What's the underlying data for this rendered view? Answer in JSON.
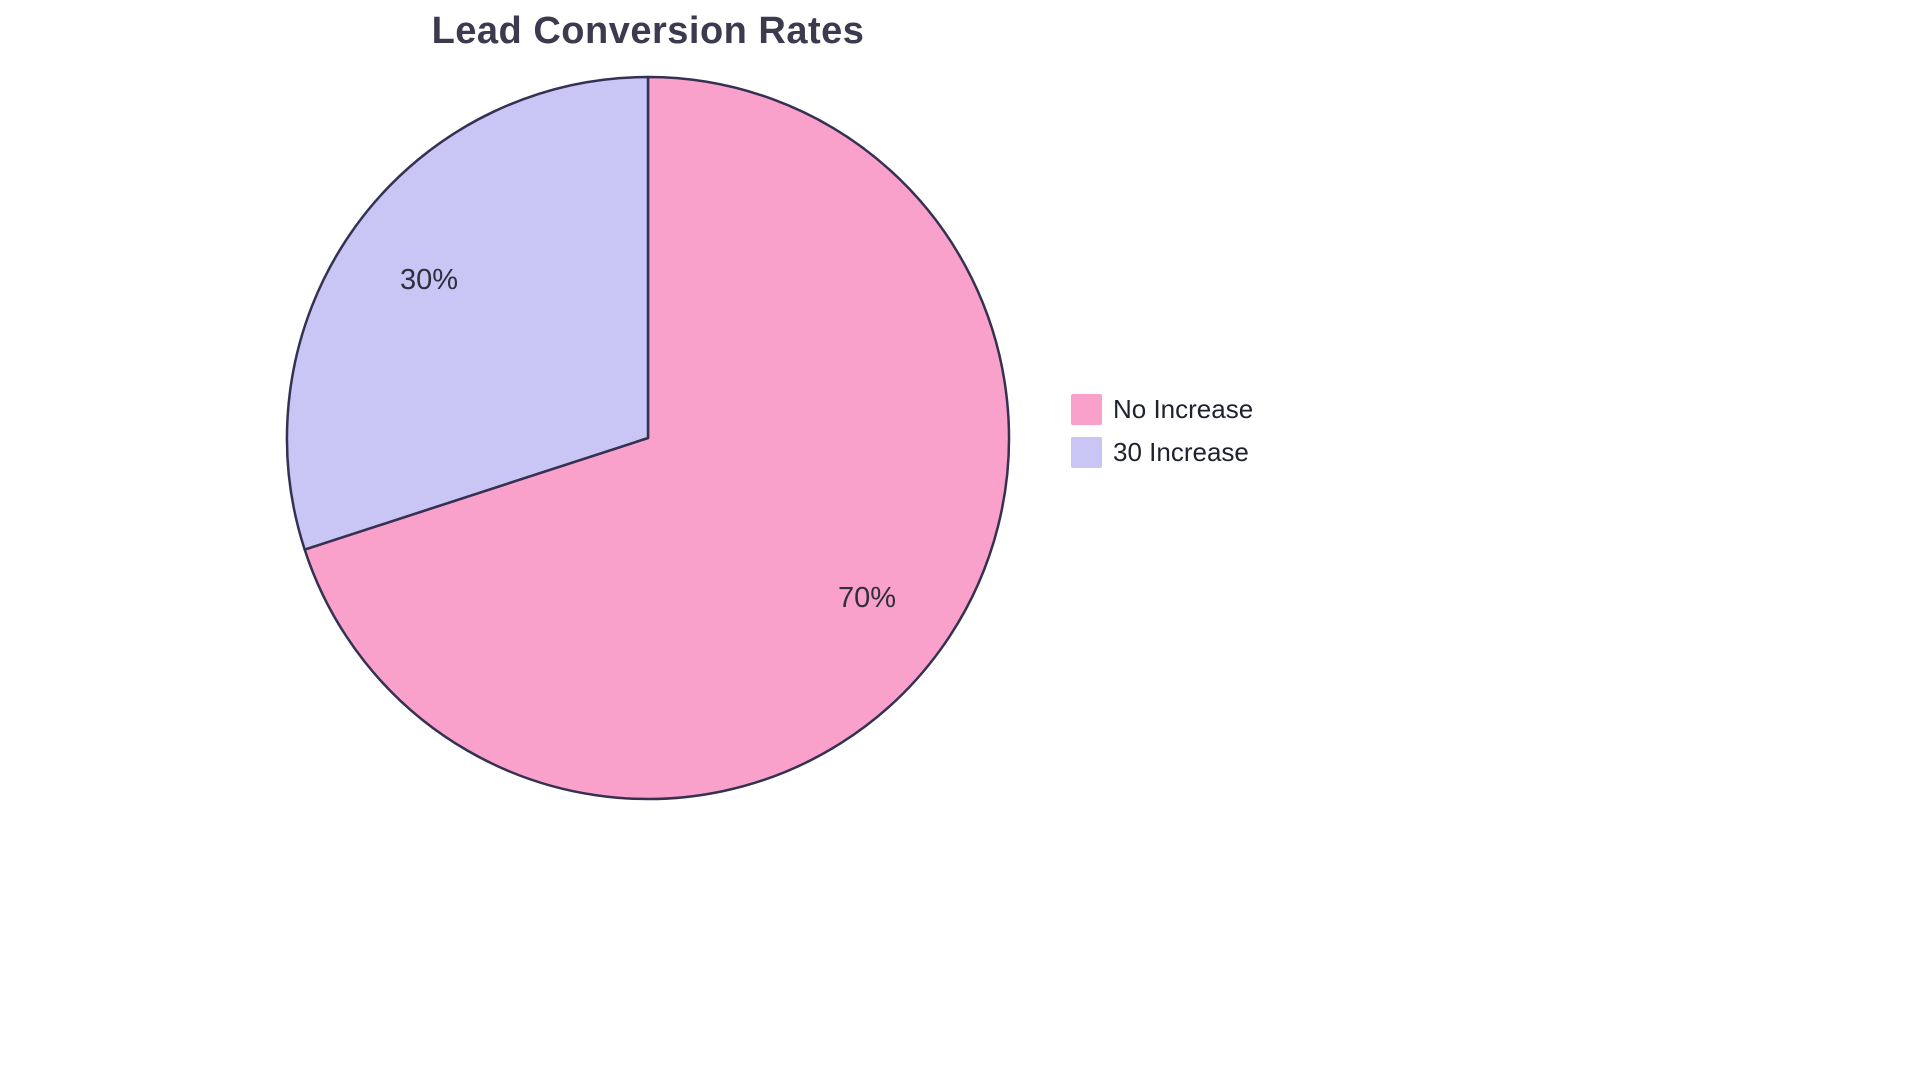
{
  "chart_data": {
    "type": "pie",
    "title": "Lead Conversion Rates",
    "labels": [
      "No Increase",
      "30 Increase"
    ],
    "values": [
      70,
      30
    ],
    "percent_labels": [
      "70%",
      "30%"
    ],
    "colors": [
      "#F9A1CB",
      "#C9C5F4"
    ],
    "stroke_color": "#343152",
    "label_color": "#2f2f3e",
    "legend_position": "right",
    "start_angle_deg": -90,
    "direction": "clockwise"
  },
  "legend": {
    "items": [
      {
        "label": "No Increase"
      },
      {
        "label": "30 Increase"
      }
    ]
  }
}
